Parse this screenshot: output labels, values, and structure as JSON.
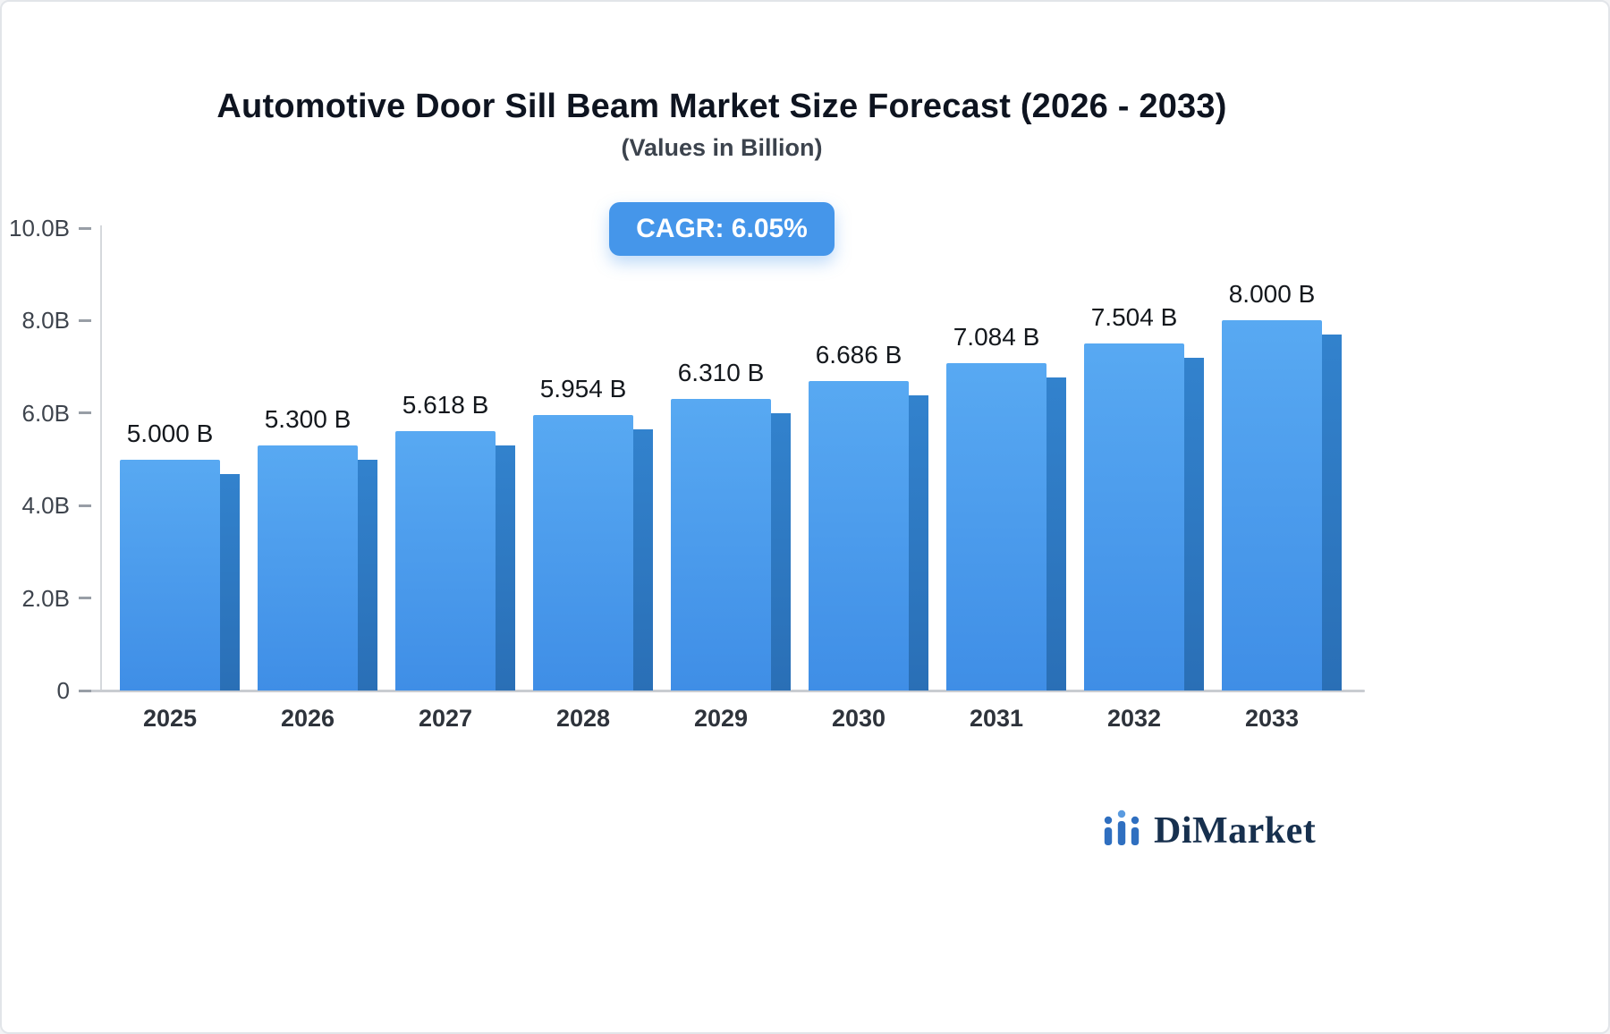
{
  "header": {
    "title": "Automotive Door Sill Beam Market Size Forecast (2026 - 2033)",
    "subtitle": "(Values in Billion)",
    "cagr_label": "CAGR: 6.05%"
  },
  "chart_data": {
    "type": "bar",
    "title": "Automotive Door Sill Beam Market Size Forecast (2026 - 2033)",
    "subtitle": "(Values in Billion)",
    "categories": [
      "2025",
      "2026",
      "2027",
      "2028",
      "2029",
      "2030",
      "2031",
      "2032",
      "2033"
    ],
    "values": [
      5.0,
      5.3,
      5.618,
      5.954,
      6.31,
      6.686,
      7.084,
      7.504,
      8.0
    ],
    "value_labels": [
      "5.000 B",
      "5.300 B",
      "5.618 B",
      "5.954 B",
      "6.310 B",
      "6.686 B",
      "7.084 B",
      "7.504 B",
      "8.000 B"
    ],
    "xlabel": "",
    "ylabel": "",
    "ylim": [
      0,
      10
    ],
    "y_ticks": [
      {
        "label": "0",
        "value": 0
      },
      {
        "label": "2.0B",
        "value": 2
      },
      {
        "label": "4.0B",
        "value": 4
      },
      {
        "label": "6.0B",
        "value": 6
      },
      {
        "label": "8.0B",
        "value": 8
      },
      {
        "label": "10.0B",
        "value": 10
      }
    ],
    "legend": "none",
    "grid": "off",
    "bar_color": "#4a9be8",
    "bar_side_color": "#2e78c2"
  },
  "colors": {
    "accent_blue": "#4596ea",
    "logo_navy": "#17304e",
    "axis_gray": "#c9ccd1"
  },
  "branding": {
    "logo_text": "DiMarket",
    "logo_icon": "bar-chart-dots-icon"
  }
}
